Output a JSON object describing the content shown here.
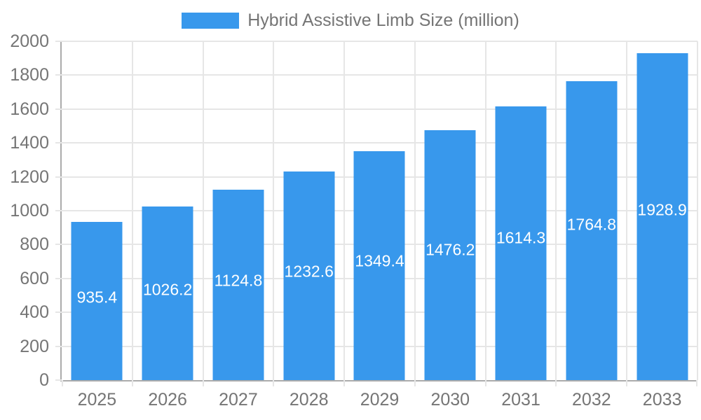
{
  "legend": {
    "label": "Hybrid Assistive Limb Size (million)"
  },
  "chart_data": {
    "type": "bar",
    "title": "Hybrid Assistive Limb Size (million)",
    "categories": [
      "2025",
      "2026",
      "2027",
      "2028",
      "2029",
      "2030",
      "2031",
      "2032",
      "2033"
    ],
    "series": [
      {
        "name": "Hybrid Assistive Limb Size (million)",
        "values": [
          935.4,
          1026.2,
          1124.8,
          1232.6,
          1349.4,
          1476.2,
          1614.3,
          1764.8,
          1928.9
        ]
      }
    ],
    "value_label_decimals": 1,
    "xlabel": "",
    "ylabel": "",
    "ylim": [
      0,
      2000
    ],
    "y_ticks": [
      0,
      200,
      400,
      600,
      800,
      1000,
      1200,
      1400,
      1600,
      1800,
      2000
    ],
    "grid": "both",
    "legend_position": "top-center",
    "value_labels_inside_bars": true
  },
  "colors": {
    "bar": "#3898EC",
    "grid_line": "#E6E6E6",
    "axis_line": "#ABABAB",
    "tick_label_text": "#757575",
    "value_label_text": "#FFFFFF",
    "background": "#FFFFFF"
  }
}
